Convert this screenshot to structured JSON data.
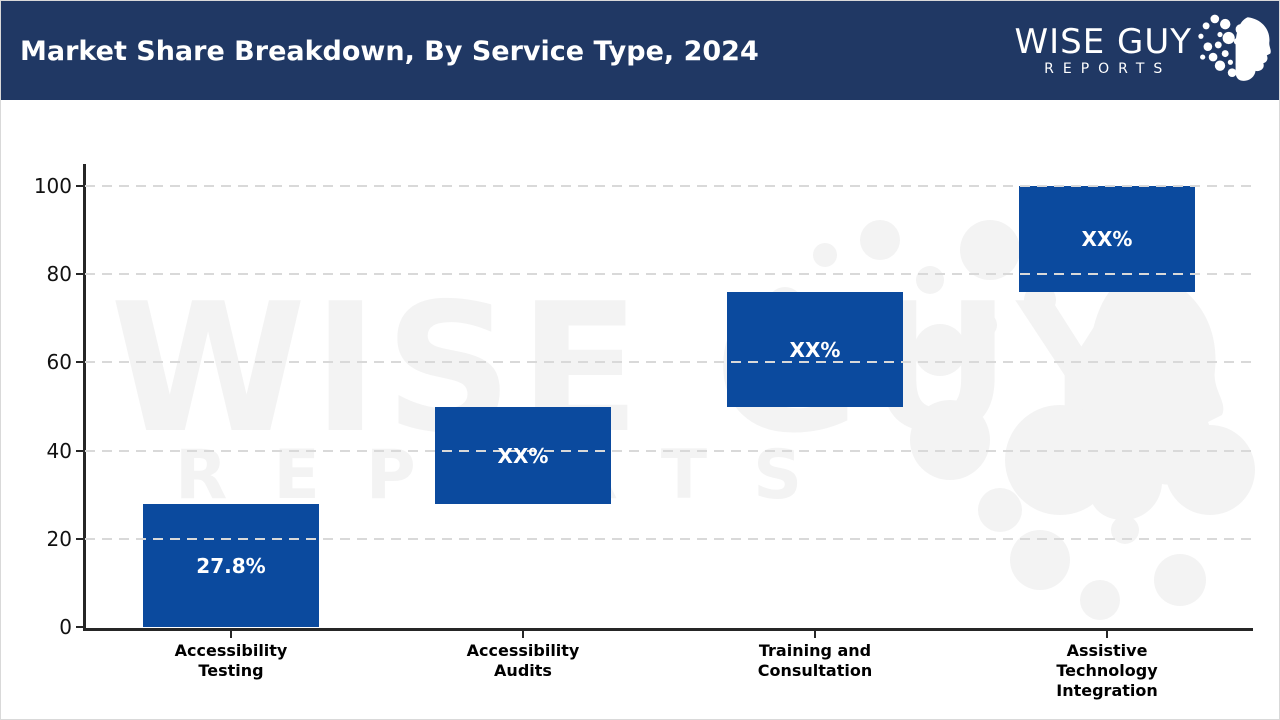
{
  "header": {
    "title": "Market Share Breakdown, By Service Type, 2024",
    "logo": {
      "line1": "WISE GUY",
      "line2": "REPORTS",
      "icon": "wiseguy-head-icon"
    }
  },
  "watermark": {
    "line1": "WISE GUY",
    "line2": "REPORTS"
  },
  "chart_data": {
    "type": "bar",
    "subtype": "waterfall-stacked-percentage",
    "title": "Market Share Breakdown, By Service Type, 2024",
    "categories": [
      "Accessibility Testing",
      "Accessibility Audits",
      "Training and Consultation",
      "Assistive Technology Integration"
    ],
    "category_label_lines": [
      [
        "Accessibility",
        "Testing"
      ],
      [
        "Accessibility",
        "Audits"
      ],
      [
        "Training and",
        "Consultation"
      ],
      [
        "Assistive",
        "Technology",
        "Integration"
      ]
    ],
    "segments": [
      {
        "label": "27.8%",
        "start": 0,
        "end": 27.8
      },
      {
        "label": "XX%",
        "start": 27.8,
        "end": 49.8
      },
      {
        "label": "XX%",
        "start": 49.8,
        "end": 76.0
      },
      {
        "label": "XX%",
        "start": 76.0,
        "end": 100.0
      }
    ],
    "xlabel": "",
    "ylabel": "",
    "yticks": [
      0,
      20,
      40,
      60,
      80,
      100
    ],
    "ylim": [
      0,
      105
    ],
    "grid": "horizontal dashed, drawn over bars",
    "legend": "none",
    "bar_color": "#0b4a9e",
    "bar_label_color": "#ffffff"
  },
  "colors": {
    "header_bg": "#203864",
    "bar": "#0b4a9e",
    "grid": "#d9d9d9",
    "axis": "#262626",
    "watermark": "#f3f3f3",
    "title_text": "#ffffff"
  }
}
